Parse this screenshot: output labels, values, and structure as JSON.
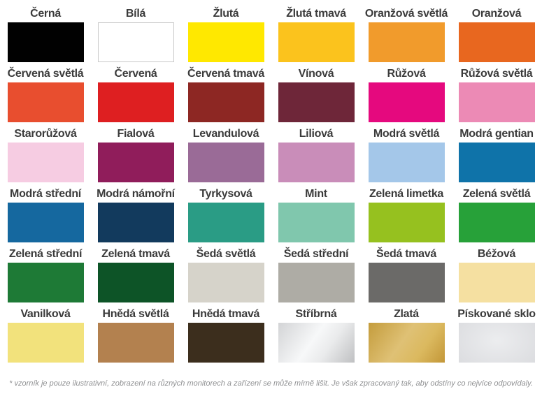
{
  "page": {
    "background": "#ffffff",
    "label_text_color": "#3b3b3b",
    "footnote_text_color": "#8f9092"
  },
  "footnote": "* vzorník je pouze ilustrativní, zobrazení na různých monitorech a zařízení se může mírně lišit. Je však zpracovaný tak, aby odstíny co nejvíce odpovídaly.",
  "chart_data": {
    "type": "table",
    "title": "Vzorník barev (color swatch palette)",
    "layout": {
      "columns": 6,
      "rows": 6
    },
    "items": [
      {
        "label": "Černá",
        "fill": "#010101"
      },
      {
        "label": "Bílá",
        "fill": "#ffffff",
        "border": "#c9c9c9"
      },
      {
        "label": "Žlutá",
        "fill": "#ffe800"
      },
      {
        "label": "Žlutá tmavá",
        "fill": "#fbc31d"
      },
      {
        "label": "Oranžová světlá",
        "fill": "#f19b2c"
      },
      {
        "label": "Oranžová",
        "fill": "#e8671f"
      },
      {
        "label": "Červená světlá",
        "fill": "#e84e2f"
      },
      {
        "label": "Červená",
        "fill": "#de1f21"
      },
      {
        "label": "Červená tmavá",
        "fill": "#8d2723"
      },
      {
        "label": "Vínová",
        "fill": "#6e2639"
      },
      {
        "label": "Růžová",
        "fill": "#e5097e"
      },
      {
        "label": "Růžová světlá",
        "fill": "#ec8ab5"
      },
      {
        "label": "Starorůžová",
        "fill": "#f6cce2"
      },
      {
        "label": "Fialová",
        "fill": "#901d5b"
      },
      {
        "label": "Levandulová",
        "fill": "#9a6b97"
      },
      {
        "label": "Liliová",
        "fill": "#c98db9"
      },
      {
        "label": "Modrá světlá",
        "fill": "#a4c7e9"
      },
      {
        "label": "Modrá gentian",
        "fill": "#0f73a9"
      },
      {
        "label": "Modrá střední",
        "fill": "#15689f"
      },
      {
        "label": "Modrá námořní",
        "fill": "#123a5d"
      },
      {
        "label": "Tyrkysová",
        "fill": "#2a9c85"
      },
      {
        "label": "Mint",
        "fill": "#80c7ad"
      },
      {
        "label": "Zelená limetka",
        "fill": "#96c11f"
      },
      {
        "label": "Zelená světlá",
        "fill": "#27a139"
      },
      {
        "label": "Zelená střední",
        "fill": "#1e7a36"
      },
      {
        "label": "Zelená tmavá",
        "fill": "#0d5427"
      },
      {
        "label": "Šedá světlá",
        "fill": "#d6d3ca"
      },
      {
        "label": "Šedá střední",
        "fill": "#aeaca5"
      },
      {
        "label": "Šedá tmavá",
        "fill": "#6b6a68"
      },
      {
        "label": "Béžová",
        "fill": "#f5e0a1"
      },
      {
        "label": "Vanilková",
        "fill": "#f2e27c"
      },
      {
        "label": "Hnědá světlá",
        "fill": "#b3814f"
      },
      {
        "label": "Hnědá tmavá",
        "fill": "#3c2e1d"
      },
      {
        "label": "Stříbrná",
        "fill": "linear-gradient(125deg, #d3d4d6 0%, #f7f8f9 45%, #eaebec 65%, #bfc0c2 100%)"
      },
      {
        "label": "Zlatá",
        "fill": "linear-gradient(125deg, #c49c3c 0%, #dfc175 45%, #dbb95f 70%, #c39738 100%)"
      },
      {
        "label": "Pískované sklo",
        "fill": "radial-gradient(ellipse 90% 120% at 50% 45%, #ecedef 0%, #dcdde0 70%, #d3d4d7 100%)"
      }
    ]
  }
}
